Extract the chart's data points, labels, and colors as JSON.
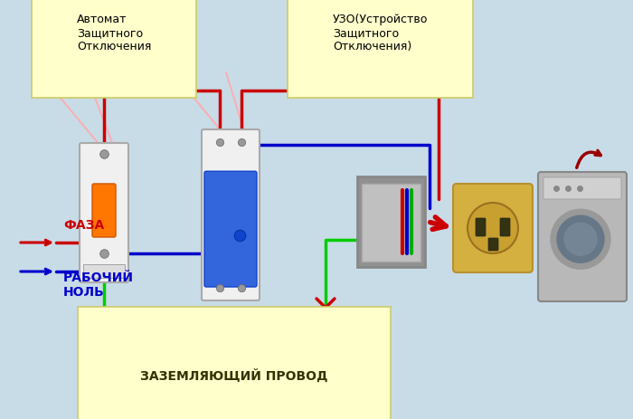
{
  "background_color": "#c8dce8",
  "label_avtomat": "Автомат\nЗащитного\nОтключения",
  "label_uzo": "УЗО(Устройство\nЗащитного\nОтключения)",
  "label_faza": "ФАЗА",
  "label_nol": "РАБОЧИЙ\nНОЛЬ",
  "label_zemlya": "ЗАЗЕМЛЯЮЩИЙ ПРОВОД",
  "color_phase": "#cc0000",
  "color_neutral": "#0000cc",
  "color_ground": "#00cc00",
  "lw": 2.5,
  "figsize": [
    7.0,
    4.63
  ]
}
